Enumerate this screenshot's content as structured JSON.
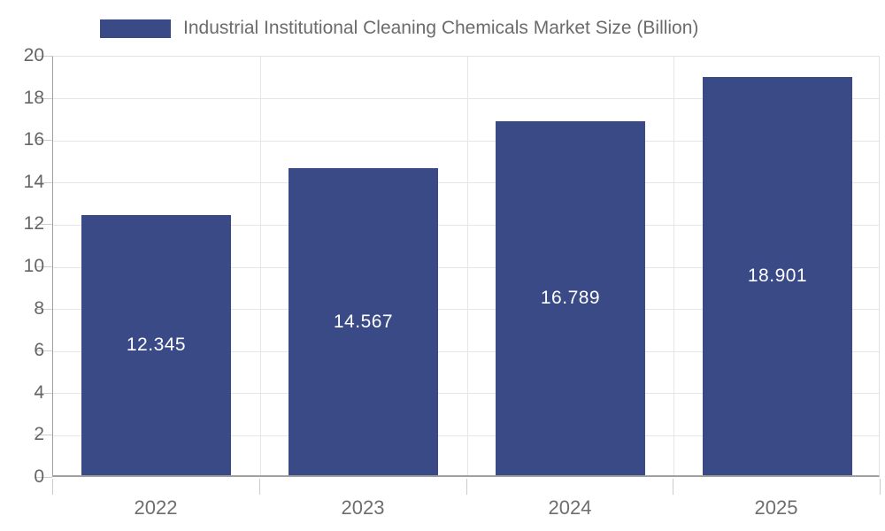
{
  "chart_data": {
    "type": "bar",
    "legend": {
      "label": "Industrial Institutional Cleaning Chemicals Market Size (Billion)",
      "position": "top"
    },
    "categories": [
      "2022",
      "2023",
      "2024",
      "2025"
    ],
    "values": [
      12.345,
      14.567,
      16.789,
      18.901
    ],
    "bar_labels": [
      "12.345",
      "14.567",
      "16.789",
      "18.901"
    ],
    "ylim": [
      0,
      20
    ],
    "yticks": [
      0,
      2,
      4,
      6,
      8,
      10,
      12,
      14,
      16,
      18,
      20
    ],
    "grid": true,
    "legend_entries": [
      "Industrial Institutional Cleaning Chemicals Market Size (Billion)"
    ],
    "colors": {
      "bar": "#3A4A87",
      "bar_label_text": "#ffffff",
      "axis_line": "#a0a0a0",
      "grid_line": "#e6e6e6",
      "frame_line": "#e2e2e2",
      "tick_mark": "#cccccc",
      "tick_label_text": "#6e6e6e",
      "legend_text": "#6b6b6b",
      "background": "#ffffff"
    }
  }
}
